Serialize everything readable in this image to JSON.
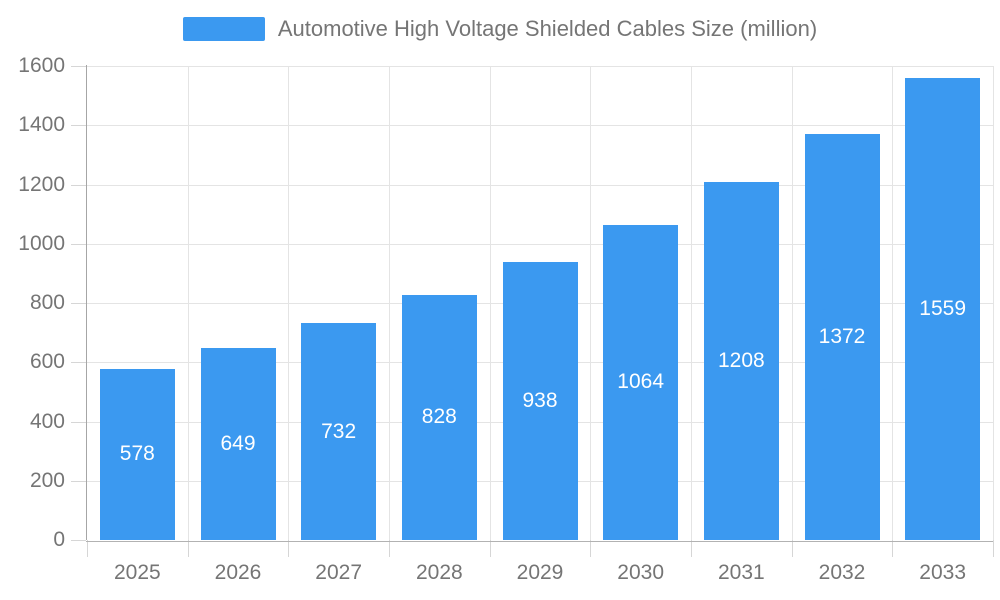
{
  "legend": {
    "label": "Automotive High Voltage Shielded Cables Size (million)"
  },
  "chart_data": {
    "type": "bar",
    "title": "Automotive High Voltage Shielded Cables Size (million)",
    "categories": [
      "2025",
      "2026",
      "2027",
      "2028",
      "2029",
      "2030",
      "2031",
      "2032",
      "2033"
    ],
    "series": [
      {
        "name": "Automotive High Voltage Shielded Cables Size (million)",
        "values": [
          578,
          649,
          732,
          828,
          938,
          1064,
          1208,
          1372,
          1559
        ]
      }
    ],
    "value_labels_shown": true,
    "xlabel": "",
    "ylabel": "",
    "ylim": [
      0,
      1600
    ],
    "yticks": [
      0,
      200,
      400,
      600,
      800,
      1000,
      1200,
      1400,
      1600
    ],
    "grid": true,
    "legend_position": "top-center",
    "colors": {
      "bar": "#3B99F0",
      "bar_value_text": "#ffffff",
      "axis_text": "#757575",
      "grid_line": "#e4e4e4",
      "axis_line": "#b2b2b2",
      "tick_line": "#d6d6d6",
      "background": "#ffffff"
    }
  }
}
